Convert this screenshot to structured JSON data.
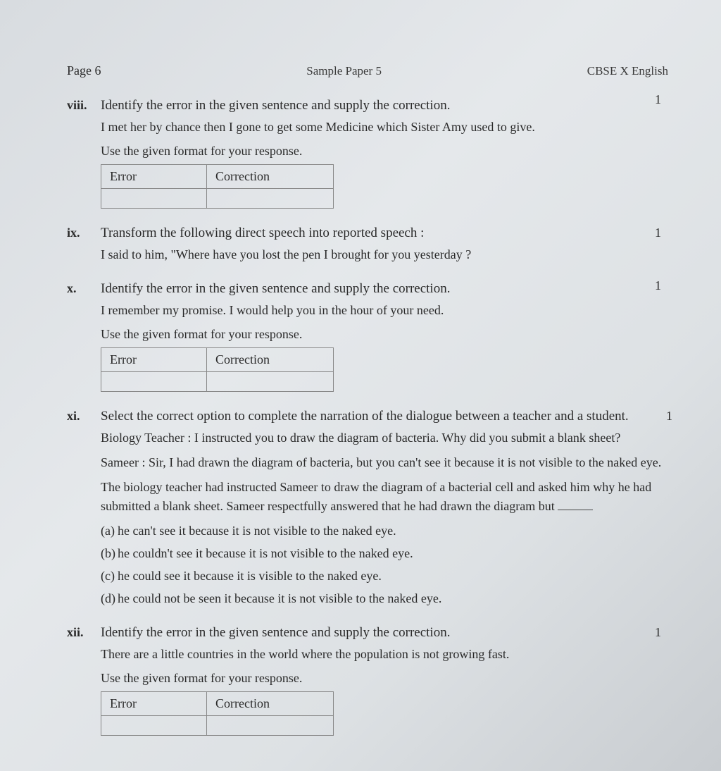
{
  "header": {
    "page": "Page 6",
    "title": "Sample Paper 5",
    "board": "CBSE X English"
  },
  "questions": {
    "q8": {
      "num": "viii.",
      "title": "Identify the error in the given sentence and supply the correction.",
      "body": "I met her by chance then I gone to get some Medicine which Sister Amy used to give.",
      "format_note": "Use the given format for your response.",
      "table": {
        "error": "Error",
        "correction": "Correction"
      },
      "marks": "1"
    },
    "q9": {
      "num": "ix.",
      "title": "Transform the following direct speech into reported speech :",
      "body": "I said to him, \"Where have you lost the pen I brought for you yesterday ?",
      "marks": "1"
    },
    "q10": {
      "num": "x.",
      "title": "Identify the error in the given sentence and supply the correction.",
      "body": "I remember my promise. I would help you in the hour of your need.",
      "format_note": "Use the given format for your response.",
      "table": {
        "error": "Error",
        "correction": "Correction"
      },
      "marks": "1"
    },
    "q11": {
      "num": "xi.",
      "title": "Select the correct option to complete the narration of the dialogue between a teacher and a student.",
      "body1": "Biology Teacher : I instructed you to draw the diagram of bacteria. Why did you submit a blank sheet?",
      "body2": "Sameer : Sir, I had drawn the diagram of bacteria, but you can't see it because it is not visible to the naked eye.",
      "body3": "The biology teacher had instructed Sameer to draw the diagram of a bacterial cell and asked him why he had submitted a blank sheet. Sameer respectfully answered that he had drawn the diagram but",
      "options": {
        "a": {
          "label": "(a)",
          "text": "he can't see it because it is not visible to the naked eye."
        },
        "b": {
          "label": "(b)",
          "text": "he couldn't see it because it is not visible to the naked eye."
        },
        "c": {
          "label": "(c)",
          "text": "he could see it because it is visible to the naked eye."
        },
        "d": {
          "label": "(d)",
          "text": "he could not be seen it because it is not visible to the naked eye."
        }
      },
      "marks": "1"
    },
    "q12": {
      "num": "xii.",
      "title": "Identify the error in the given sentence and supply the correction.",
      "body": "There are a little countries in the world where the population is not growing fast.",
      "format_note": "Use the given format for your response.",
      "table": {
        "error": "Error",
        "correction": "Correction"
      },
      "marks": "1"
    }
  }
}
